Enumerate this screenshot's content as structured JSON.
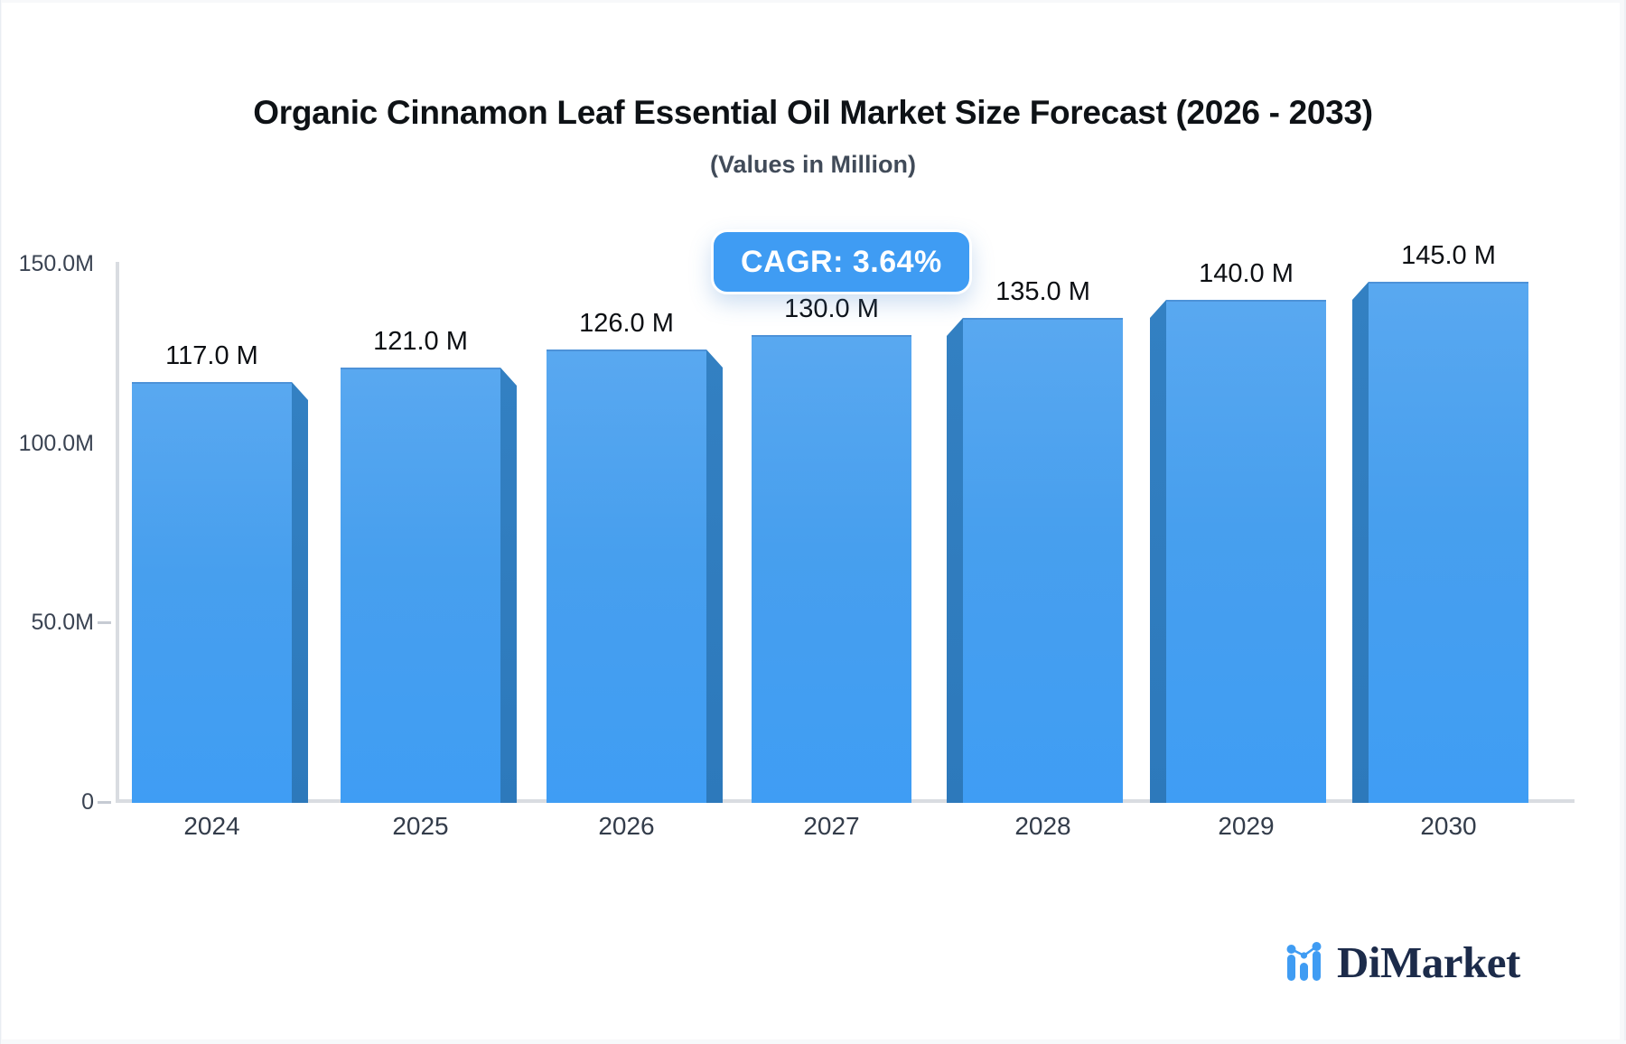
{
  "header": {
    "title": "Organic Cinnamon Leaf Essential Oil Market Size Forecast (2026 - 2033)",
    "subtitle": "(Values in Million)"
  },
  "cagr_badge": {
    "label": "CAGR: 3.64%",
    "background": "#3f9cf3",
    "text_color": "#ffffff"
  },
  "chart_data": {
    "type": "bar",
    "title": "Organic Cinnamon Leaf Essential Oil Market Size Forecast (2026 - 2033)",
    "subtitle": "(Values in Million)",
    "categories": [
      "2024",
      "2025",
      "2026",
      "2027",
      "2028",
      "2029",
      "2030"
    ],
    "values": [
      117,
      121,
      126,
      130,
      135,
      140,
      145
    ],
    "value_labels": [
      "117.0 M",
      "121.0 M",
      "126.0 M",
      "130.0 M",
      "135.0 M",
      "140.0 M",
      "145.0 M"
    ],
    "ylim": [
      0,
      150
    ],
    "yticks": [
      {
        "value": 150,
        "label": "150.0M",
        "dash": false
      },
      {
        "value": 100,
        "label": "100.0M",
        "dash": false
      },
      {
        "value": 50,
        "label": "50.0M",
        "dash": true
      },
      {
        "value": 0,
        "label": "0",
        "dash": true
      }
    ],
    "grid": false,
    "legend": false,
    "annotation": "CAGR: 3.64%",
    "bar_face_color_top": "#59a8f0",
    "bar_face_color_bottom": "#3f9df4",
    "bar_side_color": "#2d79bb",
    "axis_color": "#d9dce1"
  },
  "logo": {
    "text": "DiMarket",
    "accent": "#3f9cf3",
    "text_color": "#1c2b4a",
    "icon": "bar-line-chart-icon"
  }
}
